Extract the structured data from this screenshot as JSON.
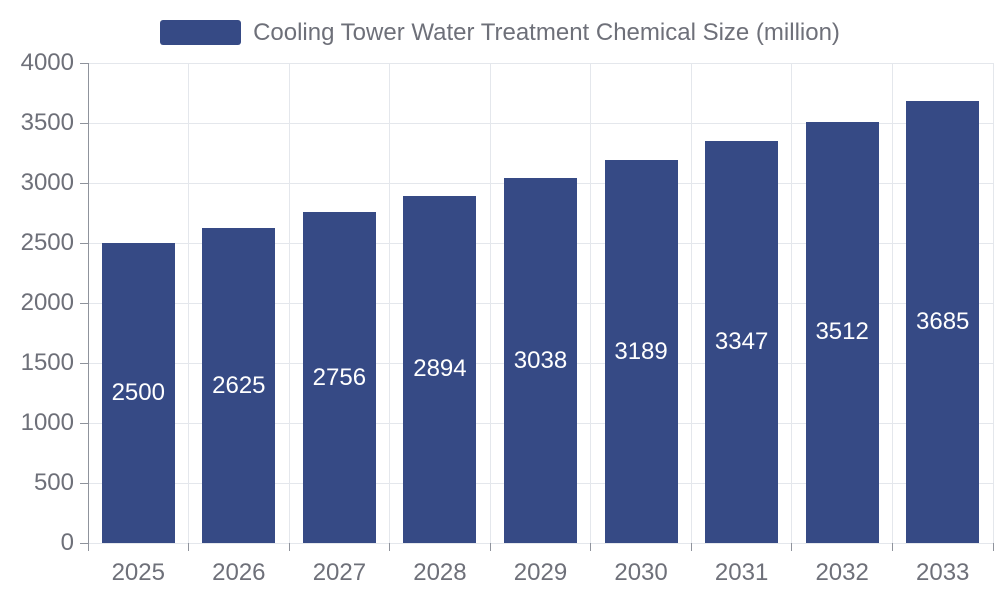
{
  "legend": {
    "label": "Cooling Tower Water Treatment Chemical Size (million)"
  },
  "chart_data": {
    "type": "bar",
    "title": "Cooling Tower Water Treatment Chemical Size (million)",
    "categories": [
      "2025",
      "2026",
      "2027",
      "2028",
      "2029",
      "2030",
      "2031",
      "2032",
      "2033"
    ],
    "values": [
      2500,
      2625,
      2756,
      2894,
      3038,
      3189,
      3347,
      3512,
      3685
    ],
    "xlabel": "",
    "ylabel": "",
    "ylim": [
      0,
      4000
    ],
    "y_ticks": [
      0,
      500,
      1000,
      1500,
      2000,
      2500,
      3000,
      3500,
      4000
    ],
    "grid": true,
    "legend_position": "top",
    "value_labels": "inside-center"
  },
  "colors": {
    "bar": "#364A85",
    "bar_value_text": "#ffffff",
    "axis_text": "#6E7079",
    "legend_text": "#6E7079",
    "grid_line": "#E4E7EC",
    "axis_line": "#8F939C"
  }
}
